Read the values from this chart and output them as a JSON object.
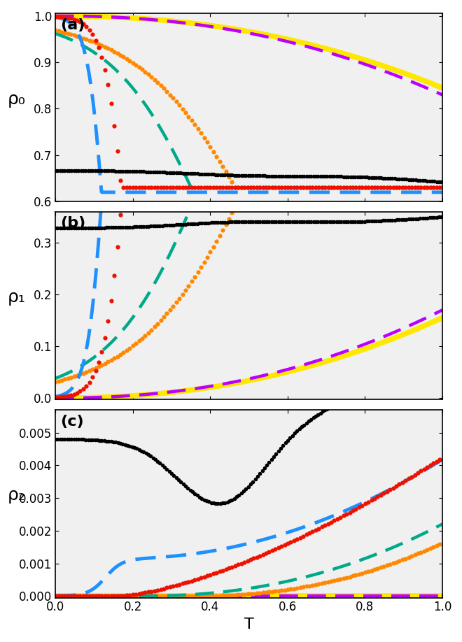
{
  "title_a": "(a)",
  "title_b": "(b)",
  "title_c": "(c)",
  "ylabel_a": "ρ₀",
  "ylabel_b": "ρ₁",
  "ylabel_c": "ρ₂",
  "xlabel": "T",
  "ylim_a": [
    0.6,
    1.005
  ],
  "ylim_b": [
    -0.003,
    0.36
  ],
  "ylim_c": [
    -5e-05,
    0.0057
  ],
  "xlim": [
    0,
    1.0
  ],
  "yticks_a": [
    0.6,
    0.7,
    0.8,
    0.9,
    1.0
  ],
  "yticks_b": [
    0.0,
    0.1,
    0.2,
    0.3
  ],
  "yticks_c": [
    0.0,
    0.001,
    0.002,
    0.003,
    0.004,
    0.005
  ],
  "xticks": [
    0,
    0.2,
    0.4,
    0.6,
    0.8,
    1.0
  ],
  "bg_color": "#f0f0f0",
  "n_points": 1000
}
